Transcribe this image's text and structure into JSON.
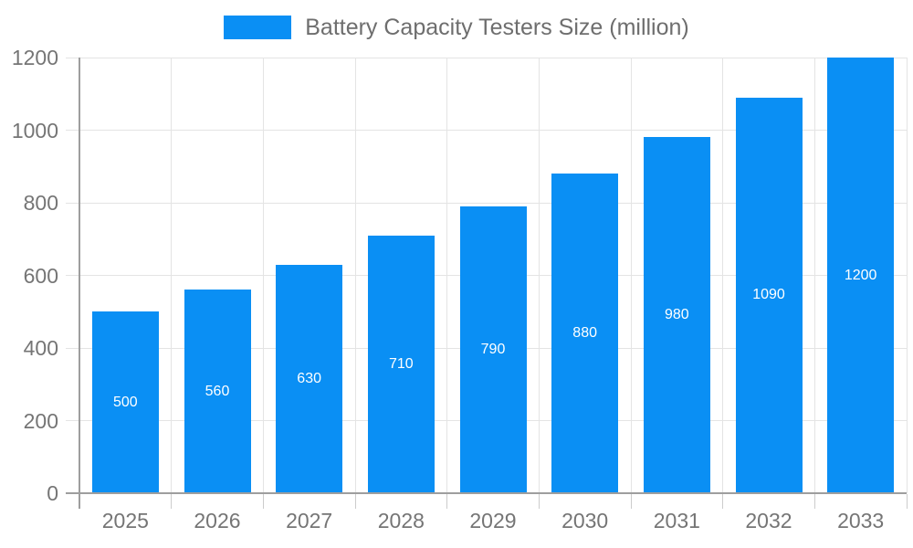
{
  "chart_data": {
    "type": "bar",
    "title": "Battery Capacity Testers Size (million)",
    "categories": [
      "2025",
      "2026",
      "2027",
      "2028",
      "2029",
      "2030",
      "2031",
      "2032",
      "2033"
    ],
    "series": [
      {
        "name": "Battery Capacity Testers Size (million)",
        "values": [
          500,
          560,
          630,
          710,
          790,
          880,
          980,
          1090,
          1200
        ]
      }
    ],
    "value_labels": [
      "500",
      "560",
      "630",
      "710",
      "790",
      "880",
      "980",
      "1090",
      "1200"
    ],
    "xlabel": "",
    "ylabel": "",
    "ylim": [
      0,
      1200
    ],
    "yticks": [
      0,
      200,
      400,
      600,
      800,
      1000,
      1200
    ],
    "grid": true,
    "legend_position": "top",
    "value_label_position": "inside-center"
  },
  "colors": {
    "bar": "#0a8ff4",
    "grid": "#e4e4e4",
    "outer_tick": "#cccccc",
    "axis": "#9e9e9e",
    "tick_text": "#757575",
    "legend_text": "#6e6e6e",
    "value_label": "#ffffff",
    "background": "#ffffff"
  }
}
